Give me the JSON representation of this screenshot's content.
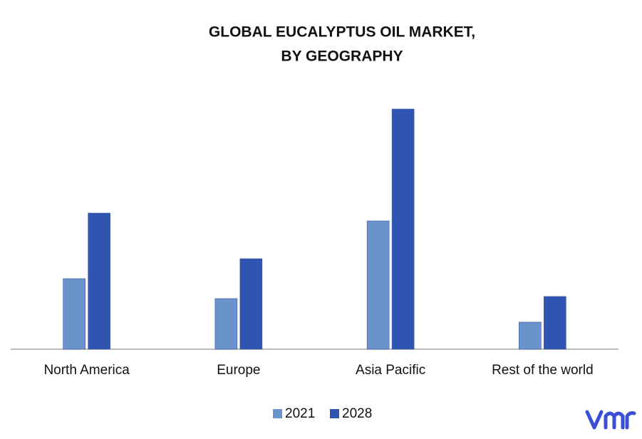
{
  "chart_data": {
    "type": "bar",
    "title": [
      "GLOBAL EUCALYPTUS OIL MARKET,",
      "BY GEOGRAPHY"
    ],
    "categories": [
      "North America",
      "Europe",
      "Asia Pacific",
      "Rest of the world"
    ],
    "series": [
      {
        "name": "2021",
        "color": "#6a93cc",
        "values": [
          99,
          71,
          180,
          38
        ]
      },
      {
        "name": "2028",
        "color": "#2f55b0",
        "values": [
          191,
          127,
          337,
          74
        ]
      }
    ],
    "ylim": [
      0,
      350
    ]
  }
}
